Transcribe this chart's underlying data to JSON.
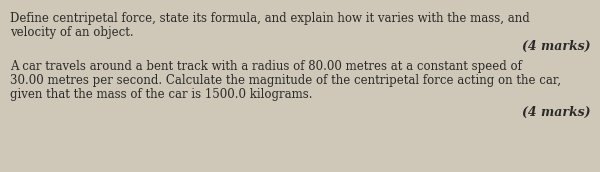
{
  "background_color": "#cfc8b8",
  "text_color": "#2a2a2a",
  "line1": "Define centripetal force, state its formula, and explain how it varies with the mass, and",
  "line2": "velocity of an object.",
  "marks1": "(4 marks)",
  "line3": "A car travels around a bent track with a radius of 80.00 metres at a constant speed of",
  "line4": "30.00 metres per second. Calculate the magnitude of the centripetal force acting on the car,",
  "line5": "given that the mass of the car is 1500.0 kilograms.",
  "marks2": "(4 marks)",
  "font_size": 8.5,
  "marks_font_size": 9.0,
  "fig_width": 6.0,
  "fig_height": 1.72,
  "dpi": 100
}
